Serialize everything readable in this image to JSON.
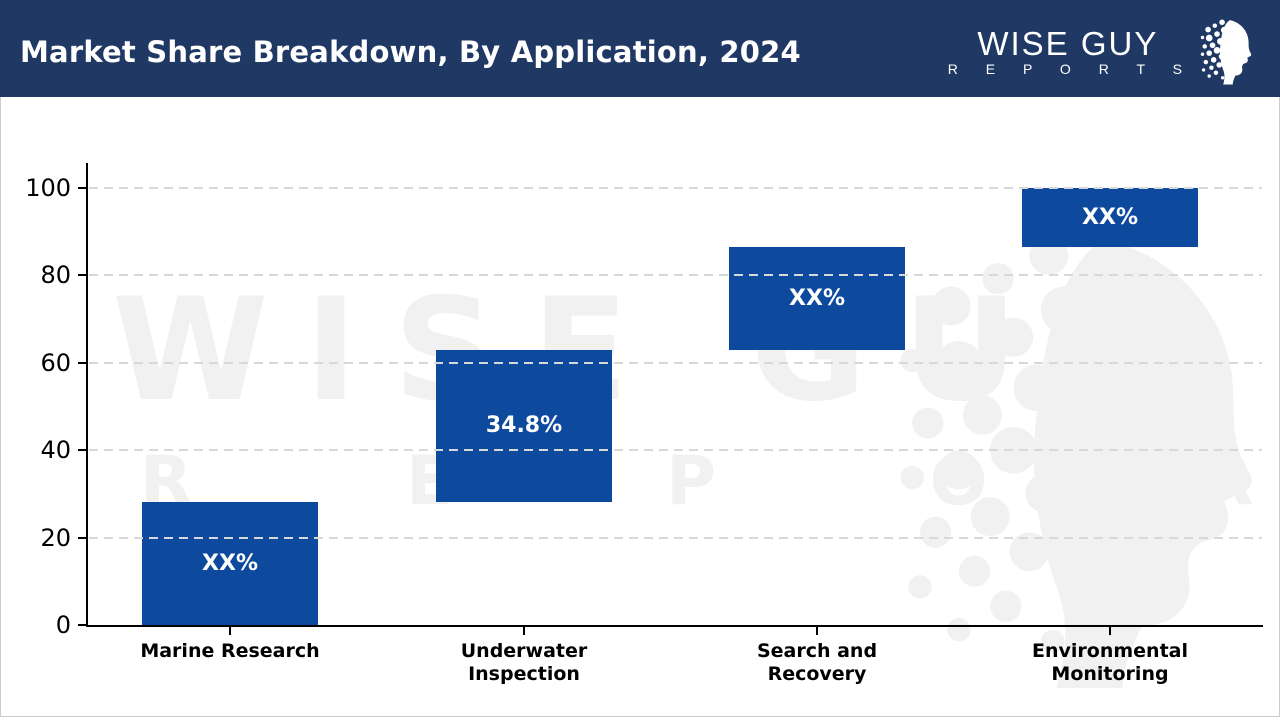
{
  "header": {
    "title": "Market Share Breakdown, By Application, 2024",
    "logo": {
      "line1": "WISE GUY",
      "line2": "R E P O R T S"
    }
  },
  "watermark": {
    "line1": "WISE GUY",
    "line2": "R E P O R T S"
  },
  "colors": {
    "header_bg": "#1f3864",
    "bar": "#0d4a9e",
    "bar_label": "#ffffff",
    "grid": "#d8d8d8",
    "axis": "#000000",
    "watermark": "#f1f1f1"
  },
  "chart_data": {
    "type": "bar",
    "subtype": "waterfall",
    "title": "Market Share Breakdown, By Application, 2024",
    "xlabel": "",
    "ylabel": "",
    "ylim": [
      0,
      105
    ],
    "yticks": [
      0,
      20,
      40,
      60,
      80,
      100
    ],
    "grid": "horizontal-dashed-over-bars",
    "legend": "none",
    "categories": [
      "Marine Research",
      "Underwater Inspection",
      "Search and Recovery",
      "Environmental Monitoring"
    ],
    "bars": [
      {
        "category": "Marine Research",
        "category_lines": [
          "Marine Research"
        ],
        "start": 0,
        "end": 28.2,
        "value": 28.2,
        "label": "XX%"
      },
      {
        "category": "Underwater Inspection",
        "category_lines": [
          "Underwater",
          "Inspection"
        ],
        "start": 28.2,
        "end": 63.0,
        "value": 34.8,
        "label": "34.8%"
      },
      {
        "category": "Search and Recovery",
        "category_lines": [
          "Search and",
          "Recovery"
        ],
        "start": 63.0,
        "end": 86.5,
        "value": 23.5,
        "label": "XX%"
      },
      {
        "category": "Environmental Monitoring",
        "category_lines": [
          "Environmental",
          "Monitoring"
        ],
        "start": 86.5,
        "end": 100,
        "value": 13.5,
        "label": "XX%"
      }
    ]
  }
}
